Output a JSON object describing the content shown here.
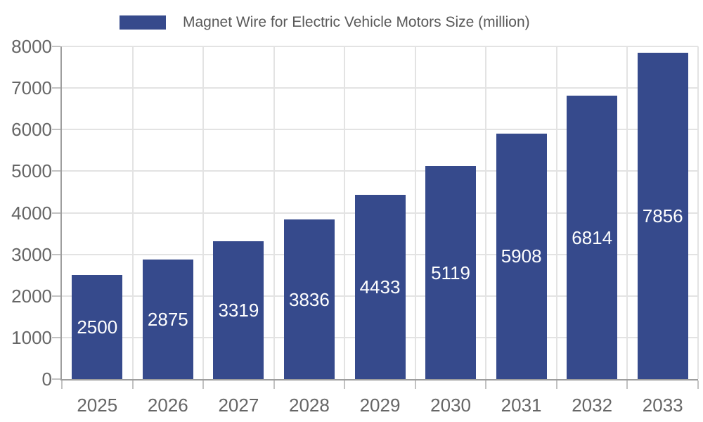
{
  "legend": {
    "label": "Magnet Wire for Electric Vehicle Motors Size (million)"
  },
  "colors": {
    "background": "#ffffff",
    "bar": "#364A8C",
    "grid": "#e3e3e3",
    "spine": "#9e9e9e",
    "tick": "#c2c2c2",
    "tick_text": "#666666",
    "legend_text": "#595959",
    "value_text": "#ffffff"
  },
  "chart_data": {
    "type": "bar",
    "title": "Magnet Wire for Electric Vehicle Motors Size (million)",
    "categories": [
      "2025",
      "2026",
      "2027",
      "2028",
      "2029",
      "2030",
      "2031",
      "2032",
      "2033"
    ],
    "series": [
      {
        "name": "Magnet Wire for Electric Vehicle Motors Size (million)",
        "values": [
          2500,
          2875,
          3319,
          3836,
          4433,
          5119,
          5908,
          6814,
          7856
        ]
      }
    ],
    "values": [
      2500,
      2875,
      3319,
      3836,
      4433,
      5119,
      5908,
      6814,
      7856
    ],
    "bar_labels": [
      2500,
      2875,
      3319,
      3836,
      4433,
      5119,
      5908,
      6814,
      7856
    ],
    "xlabel": "",
    "ylabel": "",
    "ylim": [
      0,
      8000
    ],
    "yticks": [
      0,
      1000,
      2000,
      3000,
      4000,
      5000,
      6000,
      7000,
      8000
    ],
    "grid": true,
    "legend_position": "top-center",
    "bar_label_position": "inside-center"
  }
}
